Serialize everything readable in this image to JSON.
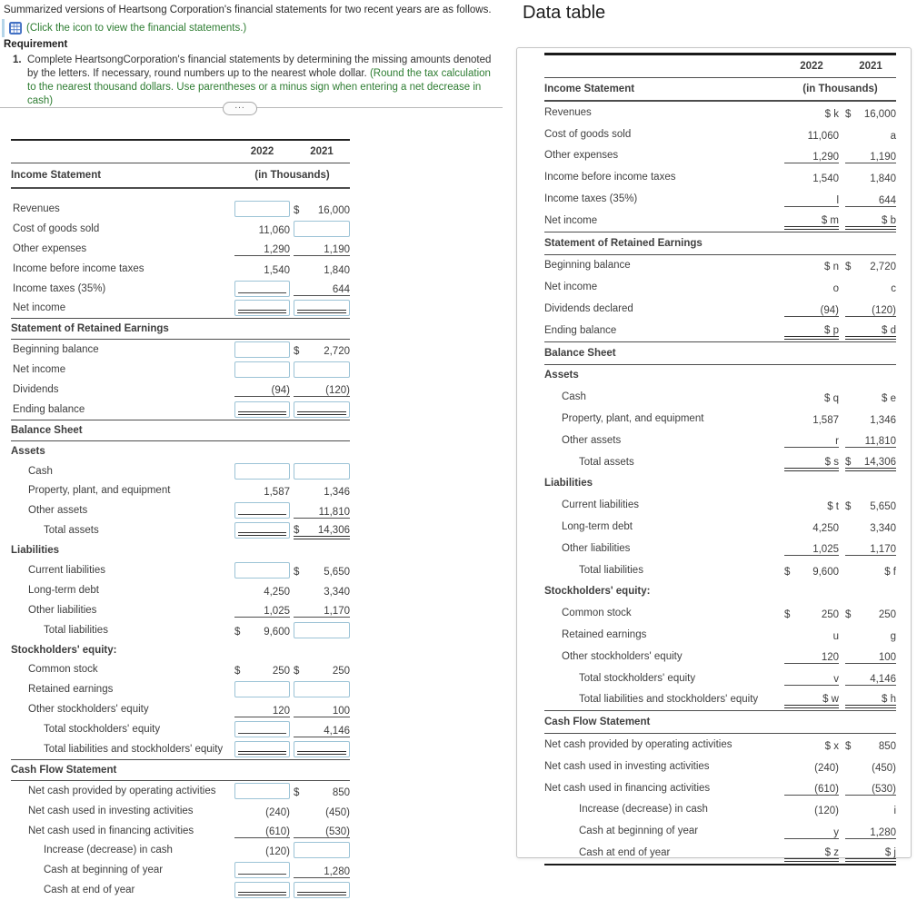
{
  "colors": {
    "accent_green": "#2e7d32",
    "icon_blue": "#4472c4",
    "input_border": "#9cc3d6"
  },
  "left": {
    "intro": "Summarized versions of Heartsong Corporation's financial statements for two recent years are as follows.",
    "icon_name": "financial-statements-table-icon",
    "icon_link_text": "(Click the icon to view the financial statements.)",
    "requirement_title": "Requirement",
    "req_number": "1.",
    "req_text_black": "Complete HeartsongCorporation's financial statements by determining the missing amounts denoted by the letters. If necessary, round numbers up to the nearest whole dollar. ",
    "req_text_green": "(Round the tax calculation to the nearest thousand dollars. Use parentheses or a minus sign when entering a net decrease in cash)",
    "divider_dots": "...",
    "form": {
      "columns": [
        "2022",
        "2021"
      ],
      "first_section": "Income Statement",
      "units": "(in Thousands)",
      "rows": [
        {
          "t": "row",
          "label": "Revenues",
          "ind": 0,
          "a": {
            "input": true
          },
          "b": {
            "pre": "$",
            "val": "16,000"
          }
        },
        {
          "t": "row",
          "label": "Cost of goods sold",
          "ind": 0,
          "a": {
            "val": "11,060"
          },
          "b": {
            "input": true
          }
        },
        {
          "t": "row",
          "label": "Other expenses",
          "ind": 0,
          "a": {
            "val": "1,290",
            "line": "s"
          },
          "b": {
            "val": "1,190",
            "line": "s"
          }
        },
        {
          "t": "row",
          "label": "Income before income taxes",
          "ind": 0,
          "a": {
            "val": "1,540"
          },
          "b": {
            "val": "1,840"
          }
        },
        {
          "t": "row",
          "label": "Income taxes (35%)",
          "ind": 0,
          "a": {
            "input": true,
            "iline": "s"
          },
          "b": {
            "val": "644",
            "line": "s"
          }
        },
        {
          "t": "row",
          "label": "Net income",
          "ind": 0,
          "a": {
            "input": true,
            "iline": "d"
          },
          "b": {
            "input": true,
            "iline": "d"
          }
        },
        {
          "t": "sec",
          "label": "Statement of Retained Earnings"
        },
        {
          "t": "row",
          "label": "Beginning balance",
          "ind": 0,
          "a": {
            "input": true
          },
          "b": {
            "pre": "$",
            "val": "2,720"
          }
        },
        {
          "t": "row",
          "label": "Net income",
          "ind": 0,
          "a": {
            "input": true
          },
          "b": {
            "input": true
          }
        },
        {
          "t": "row",
          "label": "Dividends",
          "ind": 0,
          "a": {
            "val": "(94)",
            "line": "s"
          },
          "b": {
            "val": "(120)",
            "line": "s"
          }
        },
        {
          "t": "row",
          "label": "Ending balance",
          "ind": 0,
          "a": {
            "input": true,
            "iline": "d"
          },
          "b": {
            "input": true,
            "iline": "d"
          }
        },
        {
          "t": "sec",
          "label": "Balance Sheet"
        },
        {
          "t": "sub",
          "label": "Assets"
        },
        {
          "t": "row",
          "label": "Cash",
          "ind": 1,
          "a": {
            "input": true
          },
          "b": {
            "input": true
          }
        },
        {
          "t": "row",
          "label": "Property, plant, and equipment",
          "ind": 1,
          "a": {
            "val": "1,587"
          },
          "b": {
            "val": "1,346"
          }
        },
        {
          "t": "row",
          "label": "Other assets",
          "ind": 1,
          "a": {
            "input": true,
            "iline": "s"
          },
          "b": {
            "val": "11,810",
            "line": "s"
          }
        },
        {
          "t": "row",
          "label": "Total assets",
          "ind": 2,
          "a": {
            "input": true,
            "iline": "d"
          },
          "b": {
            "pre": "$",
            "val": "14,306",
            "line": "d"
          }
        },
        {
          "t": "sub",
          "label": "Liabilities"
        },
        {
          "t": "row",
          "label": "Current liabilities",
          "ind": 1,
          "a": {
            "input": true
          },
          "b": {
            "pre": "$",
            "val": "5,650"
          }
        },
        {
          "t": "row",
          "label": "Long-term debt",
          "ind": 1,
          "a": {
            "val": "4,250"
          },
          "b": {
            "val": "3,340"
          }
        },
        {
          "t": "row",
          "label": "Other liabilities",
          "ind": 1,
          "a": {
            "val": "1,025",
            "line": "s"
          },
          "b": {
            "val": "1,170",
            "line": "s"
          }
        },
        {
          "t": "row",
          "label": "Total liabilities",
          "ind": 2,
          "a": {
            "pre": "$",
            "val": "9,600"
          },
          "b": {
            "input": true
          }
        },
        {
          "t": "sub",
          "label": "Stockholders' equity:"
        },
        {
          "t": "row",
          "label": "Common stock",
          "ind": 1,
          "a": {
            "pre": "$",
            "val": "250"
          },
          "b": {
            "pre": "$",
            "val": "250"
          }
        },
        {
          "t": "row",
          "label": "Retained earnings",
          "ind": 1,
          "a": {
            "input": true
          },
          "b": {
            "input": true
          }
        },
        {
          "t": "row",
          "label": "Other stockholders' equity",
          "ind": 1,
          "a": {
            "val": "120",
            "line": "s"
          },
          "b": {
            "val": "100",
            "line": "s"
          }
        },
        {
          "t": "row",
          "label": "Total stockholders' equity",
          "ind": 2,
          "a": {
            "input": true,
            "iline": "s"
          },
          "b": {
            "val": "4,146",
            "line": "s"
          }
        },
        {
          "t": "row",
          "label": "Total liabilities and stockholders' equity",
          "ind": 2,
          "a": {
            "input": true,
            "iline": "d"
          },
          "b": {
            "input": true,
            "iline": "d"
          }
        },
        {
          "t": "sec",
          "label": "Cash Flow Statement"
        },
        {
          "t": "row",
          "label": "Net cash provided by operating activities",
          "ind": 1,
          "a": {
            "input": true
          },
          "b": {
            "pre": "$",
            "val": "850"
          }
        },
        {
          "t": "row",
          "label": "Net cash used in investing activities",
          "ind": 1,
          "a": {
            "val": "(240)"
          },
          "b": {
            "val": "(450)"
          }
        },
        {
          "t": "row",
          "label": "Net cash used in financing activities",
          "ind": 1,
          "a": {
            "val": "(610)",
            "line": "s"
          },
          "b": {
            "val": "(530)",
            "line": "s"
          }
        },
        {
          "t": "row",
          "label": "Increase (decrease) in cash",
          "ind": 2,
          "a": {
            "val": "(120)"
          },
          "b": {
            "input": true
          }
        },
        {
          "t": "row",
          "label": "Cash at beginning of year",
          "ind": 2,
          "a": {
            "input": true,
            "iline": "s"
          },
          "b": {
            "val": "1,280",
            "line": "s"
          }
        },
        {
          "t": "row",
          "label": "Cash at end of year",
          "ind": 2,
          "a": {
            "input": true,
            "iline": "d"
          },
          "b": {
            "input": true,
            "iline": "d"
          }
        }
      ]
    }
  },
  "right": {
    "title": "Data table",
    "table": {
      "columns": [
        "2022",
        "2021"
      ],
      "first_section": "Income Statement",
      "units": "(in Thousands)",
      "rows": [
        {
          "t": "row",
          "label": "Revenues",
          "ind": 0,
          "a": {
            "val": "$ k"
          },
          "b": {
            "pre": "$",
            "val": "16,000"
          }
        },
        {
          "t": "row",
          "label": "Cost of goods sold",
          "ind": 0,
          "a": {
            "val": "11,060"
          },
          "b": {
            "val": "a"
          }
        },
        {
          "t": "row",
          "label": "Other expenses",
          "ind": 0,
          "a": {
            "val": "1,290",
            "line": "s"
          },
          "b": {
            "val": "1,190",
            "line": "s"
          }
        },
        {
          "t": "row",
          "label": "Income before income taxes",
          "ind": 0,
          "a": {
            "val": "1,540"
          },
          "b": {
            "val": "1,840"
          }
        },
        {
          "t": "row",
          "label": "Income taxes (35%)",
          "ind": 0,
          "a": {
            "val": "l",
            "line": "s"
          },
          "b": {
            "val": "644",
            "line": "s"
          }
        },
        {
          "t": "row",
          "label": "Net income",
          "ind": 0,
          "a": {
            "val": "$ m",
            "line": "d"
          },
          "b": {
            "val": "$ b",
            "line": "d"
          }
        },
        {
          "t": "sec",
          "label": "Statement of Retained Earnings"
        },
        {
          "t": "row",
          "label": "Beginning balance",
          "ind": 0,
          "a": {
            "val": "$ n"
          },
          "b": {
            "pre": "$",
            "val": "2,720"
          }
        },
        {
          "t": "row",
          "label": "Net income",
          "ind": 0,
          "a": {
            "val": "o"
          },
          "b": {
            "val": "c"
          }
        },
        {
          "t": "row",
          "label": "Dividends declared",
          "ind": 0,
          "a": {
            "val": "(94)",
            "line": "s"
          },
          "b": {
            "val": "(120)",
            "line": "s"
          }
        },
        {
          "t": "row",
          "label": "Ending balance",
          "ind": 0,
          "a": {
            "val": "$ p",
            "line": "d"
          },
          "b": {
            "val": "$ d",
            "line": "d"
          }
        },
        {
          "t": "sec",
          "label": "Balance Sheet"
        },
        {
          "t": "sub",
          "label": "Assets"
        },
        {
          "t": "row",
          "label": "Cash",
          "ind": 1,
          "a": {
            "val": "$ q"
          },
          "b": {
            "val": "$ e"
          }
        },
        {
          "t": "row",
          "label": "Property, plant, and equipment",
          "ind": 1,
          "a": {
            "val": "1,587"
          },
          "b": {
            "val": "1,346"
          }
        },
        {
          "t": "row",
          "label": "Other assets",
          "ind": 1,
          "a": {
            "val": "r",
            "line": "s"
          },
          "b": {
            "val": "11,810",
            "line": "s"
          }
        },
        {
          "t": "row",
          "label": "Total assets",
          "ind": 2,
          "a": {
            "val": "$ s",
            "line": "d"
          },
          "b": {
            "pre": "$",
            "val": "14,306",
            "line": "d"
          }
        },
        {
          "t": "sub",
          "label": "Liabilities"
        },
        {
          "t": "row",
          "label": "Current liabilities",
          "ind": 1,
          "a": {
            "val": "$ t"
          },
          "b": {
            "pre": "$",
            "val": "5,650"
          }
        },
        {
          "t": "row",
          "label": "Long-term debt",
          "ind": 1,
          "a": {
            "val": "4,250"
          },
          "b": {
            "val": "3,340"
          }
        },
        {
          "t": "row",
          "label": "Other liabilities",
          "ind": 1,
          "a": {
            "val": "1,025",
            "line": "s"
          },
          "b": {
            "val": "1,170",
            "line": "s"
          }
        },
        {
          "t": "row",
          "label": "Total liabilities",
          "ind": 2,
          "a": {
            "pre": "$",
            "val": "9,600"
          },
          "b": {
            "val": "$ f"
          }
        },
        {
          "t": "sub",
          "label": "Stockholders' equity:"
        },
        {
          "t": "row",
          "label": "Common stock",
          "ind": 1,
          "a": {
            "pre": "$",
            "val": "250"
          },
          "b": {
            "pre": "$",
            "val": "250"
          }
        },
        {
          "t": "row",
          "label": "Retained earnings",
          "ind": 1,
          "a": {
            "val": "u"
          },
          "b": {
            "val": "g"
          }
        },
        {
          "t": "row",
          "label": "Other stockholders' equity",
          "ind": 1,
          "a": {
            "val": "120",
            "line": "s"
          },
          "b": {
            "val": "100",
            "line": "s"
          }
        },
        {
          "t": "row",
          "label": "Total stockholders' equity",
          "ind": 2,
          "a": {
            "val": "v",
            "line": "s"
          },
          "b": {
            "val": "4,146",
            "line": "s"
          }
        },
        {
          "t": "row",
          "label": "Total liabilities and stockholders' equity",
          "ind": 2,
          "a": {
            "val": "$ w",
            "line": "d"
          },
          "b": {
            "val": "$ h",
            "line": "d"
          }
        },
        {
          "t": "sec",
          "label": "Cash Flow Statement"
        },
        {
          "t": "row",
          "label": "Net cash provided by operating activities",
          "ind": 0,
          "a": {
            "val": "$ x"
          },
          "b": {
            "pre": "$",
            "val": "850"
          }
        },
        {
          "t": "row",
          "label": "Net cash used in investing activities",
          "ind": 0,
          "a": {
            "val": "(240)"
          },
          "b": {
            "val": "(450)"
          }
        },
        {
          "t": "row",
          "label": "Net cash used in financing activities",
          "ind": 0,
          "a": {
            "val": "(610)",
            "line": "s"
          },
          "b": {
            "val": "(530)",
            "line": "s"
          }
        },
        {
          "t": "row",
          "label": "Increase (decrease) in cash",
          "ind": 2,
          "a": {
            "val": "(120)"
          },
          "b": {
            "val": "i"
          }
        },
        {
          "t": "row",
          "label": "Cash at beginning of year",
          "ind": 2,
          "a": {
            "val": "y",
            "line": "s"
          },
          "b": {
            "val": "1,280",
            "line": "s"
          }
        },
        {
          "t": "row",
          "label": "Cash at end of year",
          "ind": 2,
          "a": {
            "val": "$ z",
            "line": "d"
          },
          "b": {
            "val": "$ j",
            "line": "d"
          }
        }
      ]
    }
  }
}
